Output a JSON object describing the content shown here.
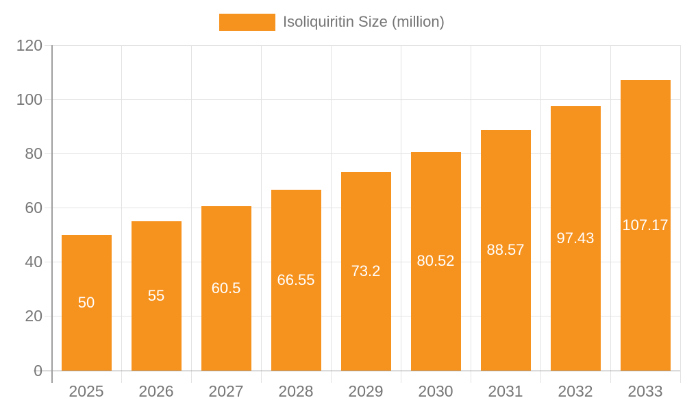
{
  "chart_data": {
    "type": "bar",
    "title": "",
    "xlabel": "",
    "ylabel": "",
    "legend": {
      "label": "Isoliquiritin Size (million)",
      "position": "top-center"
    },
    "categories": [
      "2025",
      "2026",
      "2027",
      "2028",
      "2029",
      "2030",
      "2031",
      "2032",
      "2033"
    ],
    "series": [
      {
        "name": "Isoliquiritin Size (million)",
        "values": [
          50,
          55,
          60.5,
          66.55,
          73.2,
          80.52,
          88.57,
          97.43,
          107.17
        ],
        "value_labels": [
          "50",
          "55",
          "60.5",
          "66.55",
          "73.2",
          "80.52",
          "88.57",
          "97.43",
          "107.17"
        ]
      }
    ],
    "ylim": [
      0,
      120
    ],
    "yticks": [
      0,
      20,
      40,
      60,
      80,
      100,
      120
    ],
    "grid": true,
    "colors": {
      "bar": "#F6921E",
      "axis_text": "#757575",
      "grid_line": "#E2E2E2",
      "axis_line": "#9E9E9E",
      "value_label": "#FFFFFF",
      "background": "#FFFFFF"
    }
  }
}
